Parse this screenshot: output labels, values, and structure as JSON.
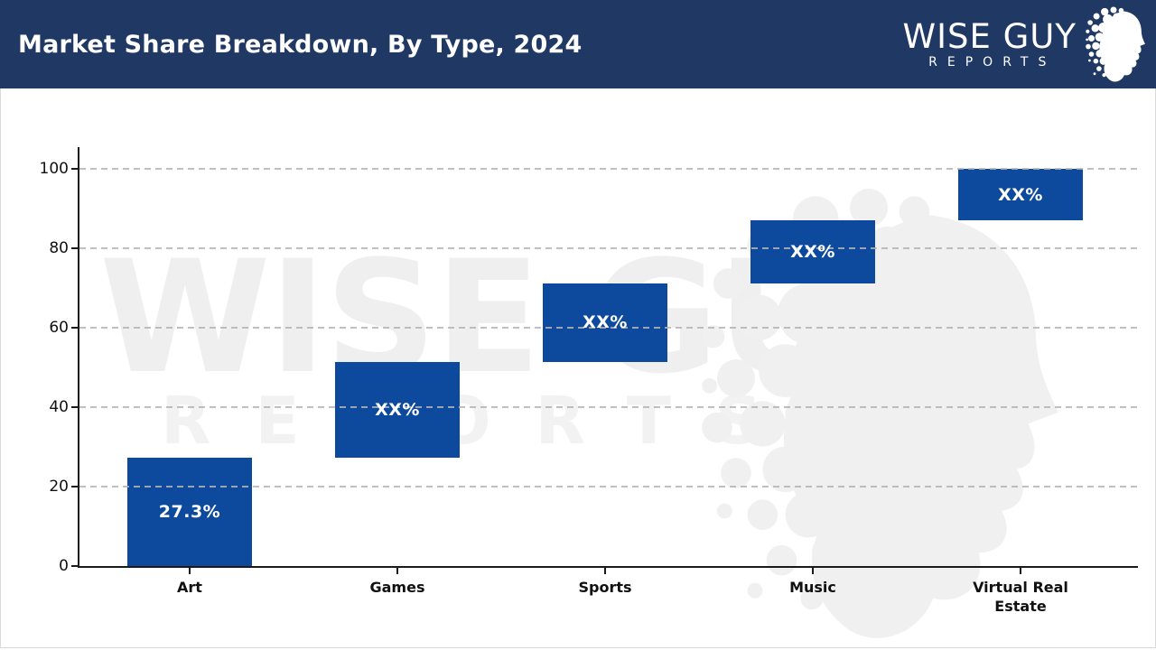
{
  "header": {
    "title": "Market Share Breakdown, By Type, 2024",
    "logo": {
      "line1": "WISE GUY",
      "line2": "REPORTS"
    }
  },
  "watermark": {
    "line1": "WISE GUY",
    "line2": "REPORTS"
  },
  "colors": {
    "header_bg": "#1f3864",
    "bar_blue": "#0d4a9e",
    "grid_gray": "#cccccc",
    "axis_black": "#1a1a1a",
    "watermark_gray": "#f0f0f0"
  },
  "chart_data": {
    "type": "bar",
    "subtype": "waterfall",
    "title": "Market Share Breakdown, By Type, 2024",
    "categories": [
      "Art",
      "Games",
      "Sports",
      "Music",
      "Virtual Real Estate"
    ],
    "segments": [
      {
        "category": "Art",
        "start": 0,
        "end": 27.3,
        "label": "27.3%"
      },
      {
        "category": "Games",
        "start": 27.3,
        "end": 51.3,
        "label": "XX%"
      },
      {
        "category": "Sports",
        "start": 51.3,
        "end": 71.2,
        "label": "XX%"
      },
      {
        "category": "Music",
        "start": 71.2,
        "end": 87,
        "label": "XX%"
      },
      {
        "category": "Virtual Real Estate",
        "start": 87,
        "end": 100,
        "label": "XX%"
      }
    ],
    "xlabel": "",
    "ylabel": "",
    "ylim": [
      0,
      100
    ],
    "yticks": [
      0,
      20,
      40,
      60,
      80,
      100
    ],
    "grid": "horizontal-dashed",
    "legend": null,
    "bar_color": "#0d4a9e",
    "value_label_color": "#ffffff"
  }
}
